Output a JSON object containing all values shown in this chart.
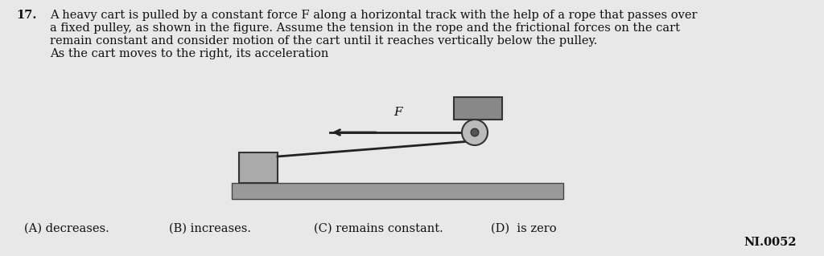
{
  "fig_bg_color": "#e8e8e8",
  "question_number": "17.",
  "question_text_line1": "A heavy cart is pulled by a constant force F along a horizontal track with the help of a rope that passes over",
  "question_text_line2": "a fixed pulley, as shown in the figure. Assume the tension in the rope and the frictional forces on the cart",
  "question_text_line3": "remain constant and consider motion of the cart until it reaches vertically below the pulley.",
  "question_text_line4": "As the cart moves to the right, its acceleration",
  "options": [
    "(A) decreases.",
    "(B) increases.",
    "(C) remains constant.",
    "(D)  is zero"
  ],
  "footer": "NI.0052",
  "text_color": "#111111",
  "fontsize": 10.5,
  "track_color": "#999999",
  "track_edge": "#444444",
  "cart_color": "#aaaaaa",
  "cart_edge": "#333333",
  "pulley_color": "#bbbbbb",
  "pulley_edge": "#333333",
  "weight_color": "#888888",
  "weight_edge": "#333333",
  "rope_color": "#222222"
}
